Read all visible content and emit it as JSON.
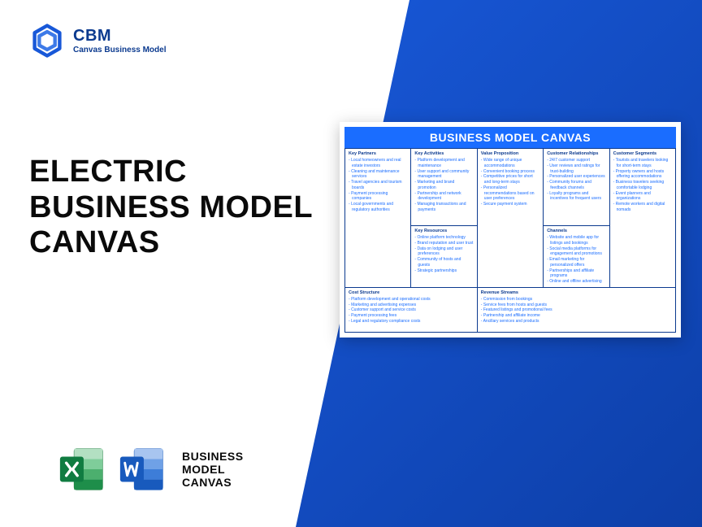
{
  "logo": {
    "title": "CBM",
    "subtitle": "Canvas Business Model"
  },
  "main_title_lines": [
    "ELECTRIC",
    "BUSINESS MODEL",
    "CANVAS"
  ],
  "file_label_lines": [
    "BUSINESS",
    "MODEL",
    "CANVAS"
  ],
  "canvas": {
    "header": "BUSINESS MODEL CANVAS",
    "colors": {
      "accent": "#1a6dff",
      "border": "#0b3a8f",
      "text": "#1a6dff"
    },
    "sections": {
      "key_partners": {
        "title": "Key Partners",
        "items": [
          "Local homeowners and real estate investors",
          "Cleaning and maintenance services",
          "Travel agencies and tourism boards",
          "Payment processing companies",
          "Local governments and regulatory authorities"
        ]
      },
      "key_activities": {
        "title": "Key Activities",
        "items": [
          "Platform development and maintenance",
          "User support and community management",
          "Marketing and brand promotion",
          "Partnership and network development",
          "Managing transactions and payments"
        ]
      },
      "key_resources": {
        "title": "Key Resources",
        "items": [
          "Online platform technology",
          "Brand reputation and user trust",
          "Data on lodging and user preferences",
          "Community of hosts and guests",
          "Strategic partnerships"
        ]
      },
      "value_proposition": {
        "title": "Value Proposition",
        "items": [
          "Wide range of unique accommodations",
          "Convenient booking process",
          "Competitive prices for short and long-term stays",
          "Personalized recommendations based on user preferences",
          "Secure payment system"
        ]
      },
      "customer_relationships": {
        "title": "Customer Relationships",
        "items": [
          "24/7 customer support",
          "User reviews and ratings for trust-building",
          "Personalized user experiences",
          "Community forums and feedback channels",
          "Loyalty programs and incentives for frequent users"
        ]
      },
      "channels": {
        "title": "Channels",
        "items": [
          "Website and mobile app for listings and bookings",
          "Social media platforms for engagement and promotions",
          "Email marketing for personalized offers",
          "Partnerships and affiliate programs",
          "Online and offline advertising"
        ]
      },
      "customer_segments": {
        "title": "Customer Segments",
        "items": [
          "Tourists and travelers looking for short-term stays",
          "Property owners and hosts offering accommodations",
          "Business travelers seeking comfortable lodging",
          "Event planners and organizations",
          "Remote workers and digital nomads"
        ]
      },
      "cost_structure": {
        "title": "Cost Structure",
        "items": [
          "Platform development and operational costs",
          "Marketing and advertising expenses",
          "Customer support and service costs",
          "Payment processing fees",
          "Legal and regulatory compliance costs"
        ]
      },
      "revenue_streams": {
        "title": "Revenue Streams",
        "items": [
          "Commission from bookings",
          "Service fees from hosts and guests",
          "Featured listings and promotional fees",
          "Partnership and affiliate income",
          "Ancillary services and products"
        ]
      }
    }
  }
}
